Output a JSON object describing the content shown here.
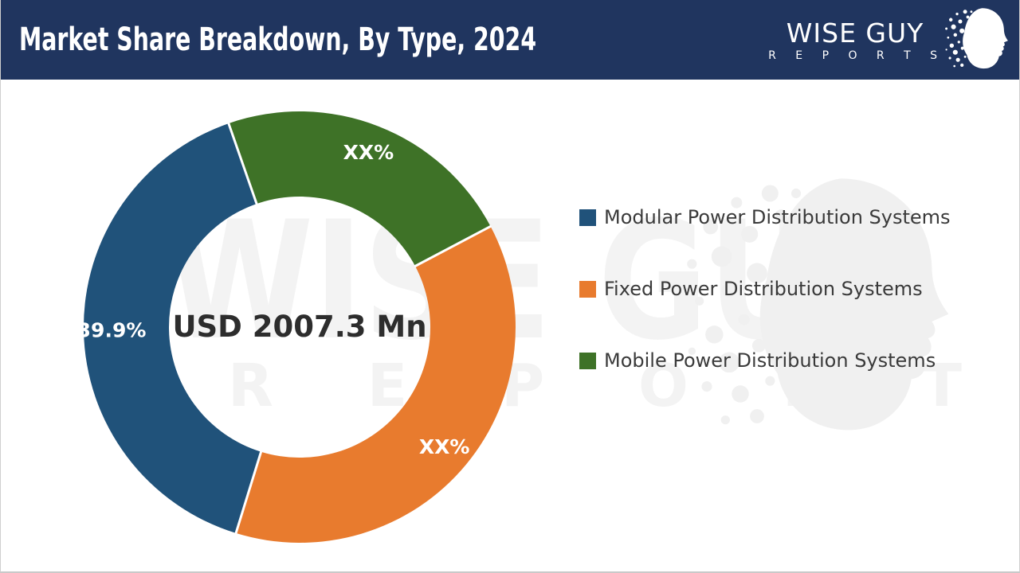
{
  "header": {
    "title": "Market Share Breakdown, By Type, 2024",
    "logo": {
      "line1": "WISE GUY",
      "line2": "R E P O R T S"
    }
  },
  "watermark": {
    "line1": "WISE GUY",
    "line2": "R E P O R T S"
  },
  "chart_data": {
    "type": "pie",
    "subtype": "donut",
    "title": "Market Share Breakdown, By Type, 2024",
    "center_label": "USD 2007.3 Mn",
    "start_angle_deg": 109.2,
    "direction": "counterclockwise",
    "inner_radius_ratio": 0.605,
    "legend_position": "right",
    "segments": [
      {
        "name": "Modular Power Distribution Systems",
        "value": 39.9,
        "display_label": "39.9%",
        "color": "#20527a"
      },
      {
        "name": "Fixed Power Distribution Systems",
        "value": 37.5,
        "display_label": "XX%",
        "color": "#e87b2e"
      },
      {
        "name": "Mobile Power Distribution Systems",
        "value": 22.6,
        "display_label": "XX%",
        "color": "#3e7227"
      }
    ]
  },
  "colors": {
    "header_bg": "#20355f",
    "legend_text": "#3a3a3a",
    "center_text": "#2d2d2d",
    "watermark": "#f3f3f3",
    "gap": "#ffffff"
  }
}
